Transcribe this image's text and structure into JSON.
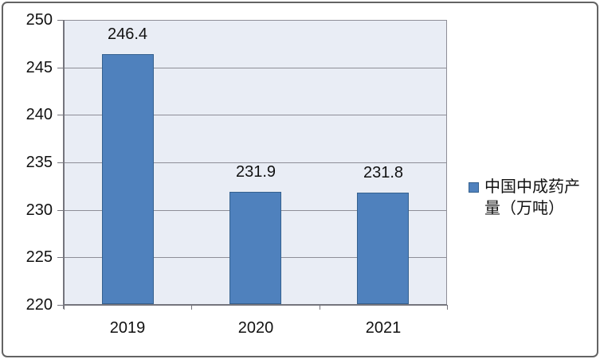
{
  "chart_data": {
    "type": "bar",
    "title": "",
    "xlabel": "",
    "ylabel": "",
    "categories": [
      "2019",
      "2020",
      "2021"
    ],
    "series": [
      {
        "name": "中国中成药产量（万吨）",
        "values": [
          246.4,
          231.9,
          231.8
        ]
      }
    ],
    "data_labels": [
      "246.4",
      "231.9",
      "231.8"
    ],
    "ylim": [
      220,
      250
    ],
    "ytick_interval": 5,
    "yticks": [
      "250",
      "245",
      "240",
      "235",
      "230",
      "225",
      "220"
    ],
    "grid": true,
    "legend_position": "right"
  },
  "legend": {
    "lines": [
      "中国中成药产",
      "量（万吨）"
    ]
  },
  "colors": {
    "bar_fill": "#4F81BD",
    "bar_border": "#35618F",
    "plot_background": "#E9EDF5",
    "gridline": "#8E8E97",
    "axis": "#75757D",
    "frame_border": "#636363",
    "text": "#111111",
    "chart_background": "#FFFFFF"
  }
}
